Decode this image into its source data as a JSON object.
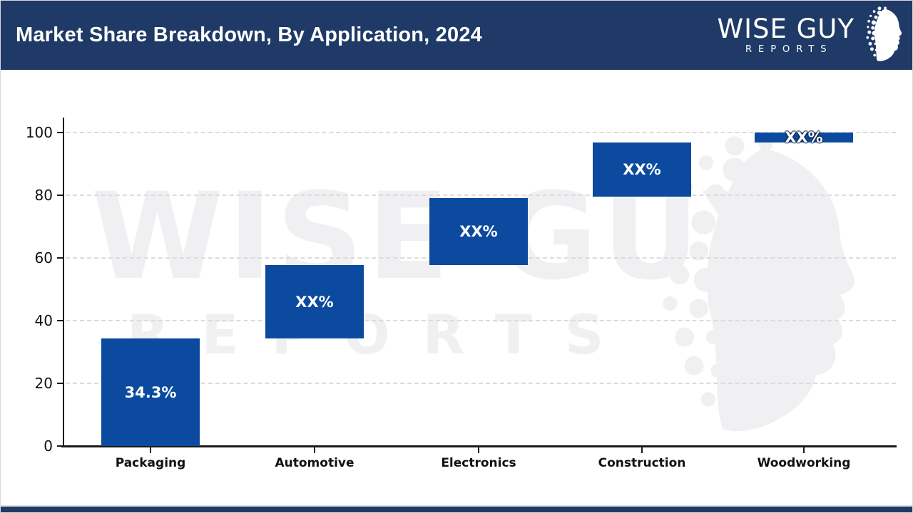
{
  "header": {
    "title": "Market Share Breakdown, By Application, 2024",
    "logo": {
      "line1": "WISE GUY",
      "line2": "REPORTS"
    }
  },
  "watermark": {
    "line1": "WISE GUY",
    "line2": "REPORTS"
  },
  "colors": {
    "header_bg": "#1f3a66",
    "footer_bg": "#1f3a66",
    "bar": "#0b4a9e",
    "grid": "#dcdcdc",
    "axis": "#1a1a1a",
    "bar_label": "#ffffff",
    "watermark": "#f0f0f2"
  },
  "chart_data": {
    "type": "bar",
    "subtype": "waterfall",
    "title": "Market Share Breakdown, By Application, 2024",
    "categories": [
      "Packaging",
      "Automotive",
      "Electronics",
      "Construction",
      "Woodworking"
    ],
    "bars": [
      {
        "category": "Packaging",
        "start": 0,
        "end": 34.3,
        "label": "34.3%"
      },
      {
        "category": "Automotive",
        "start": 34.3,
        "end": 57.7,
        "label": "XX%"
      },
      {
        "category": "Electronics",
        "start": 57.7,
        "end": 79.2,
        "label": "XX%"
      },
      {
        "category": "Construction",
        "start": 79.5,
        "end": 96.8,
        "label": "XX%"
      },
      {
        "category": "Woodworking",
        "start": 96.8,
        "end": 100,
        "label": "XX%"
      }
    ],
    "yticks": [
      0,
      20,
      40,
      60,
      80,
      100
    ],
    "ylim": [
      0,
      105
    ],
    "xlabel": "",
    "ylabel": "",
    "grid": "horizontal-dashed",
    "legend": "none"
  }
}
